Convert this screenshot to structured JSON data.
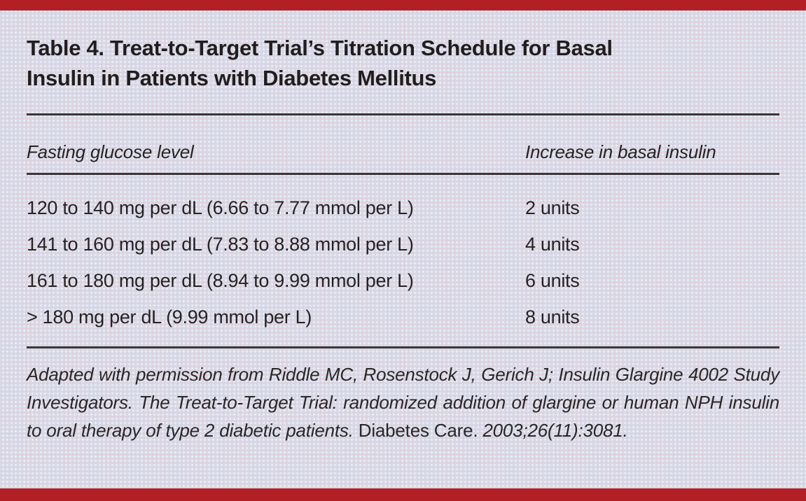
{
  "colors": {
    "accent_red": "#b22025",
    "background": "#d7dae8",
    "text": "#262223",
    "rule": "#3b3738"
  },
  "title": {
    "line1": "Table 4. Treat-to-Target Trial’s Titration Schedule for Basal",
    "line2": "Insulin in Patients with Diabetes Mellitus"
  },
  "table": {
    "col1_header": "Fasting glucose level",
    "col2_header": "Increase in basal insulin",
    "rows": [
      {
        "glucose": "120 to 140 mg per dL (6.66 to 7.77 mmol per L)",
        "increase": "2 units"
      },
      {
        "glucose": "141 to 160 mg per dL (7.83 to 8.88 mmol per L)",
        "increase": "4 units"
      },
      {
        "glucose": "161 to 180 mg per dL (8.94 to 9.99 mmol per L)",
        "increase": "6 units"
      },
      {
        "glucose": "> 180 mg per dL (9.99 mmol per L)",
        "increase": "8 units"
      }
    ]
  },
  "footnote": {
    "citation_italic": "Adapted with permission from Riddle MC, Rosenstock J, Gerich J; Insulin Glargine 4002 Study Investigators. The Treat-to-Target Trial: randomized addition of glargine or human NPH insulin to oral therapy of type 2 diabetic patients. ",
    "journal_roman": "Diabetes Care. ",
    "citation_tail_italic": "2003;26(11):3081."
  }
}
